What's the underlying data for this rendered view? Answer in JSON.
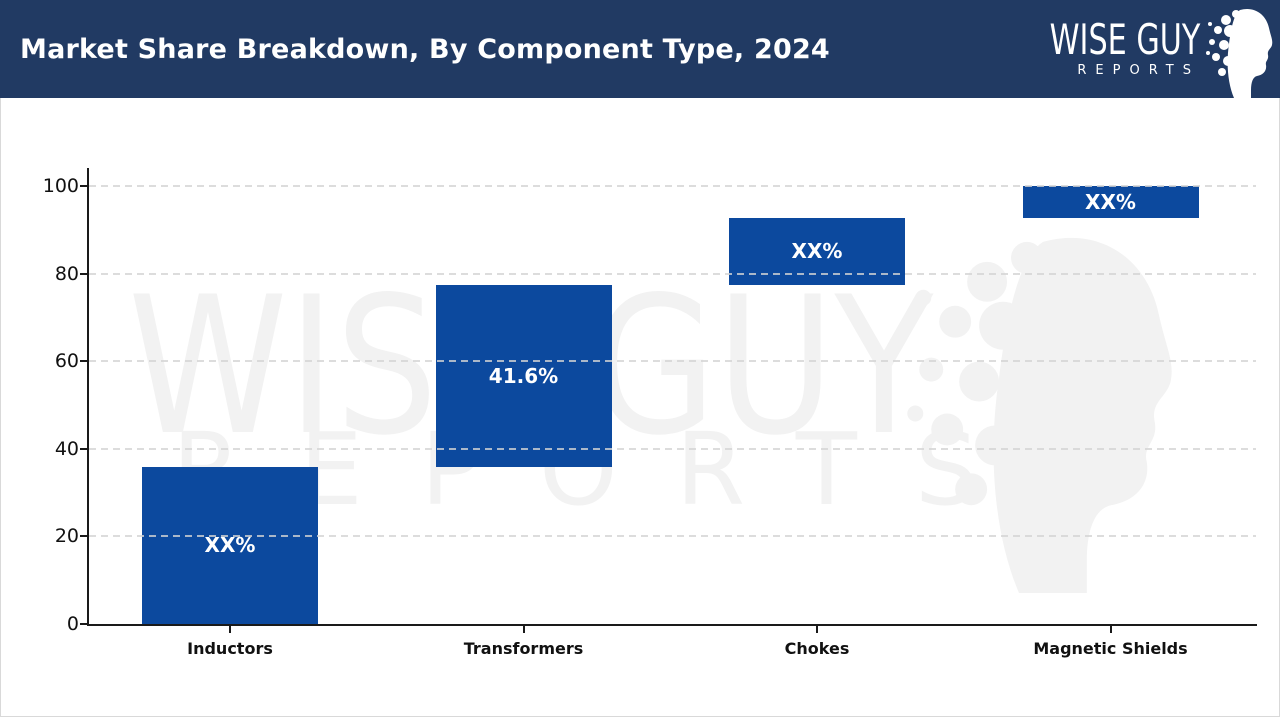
{
  "header": {
    "title": "Market Share Breakdown, By Component Type, 2024",
    "logo": {
      "line1": "WISE GUY",
      "line2": "REPORTS"
    }
  },
  "watermark": {
    "line1": "WISE GUY",
    "line2": "REPORTS"
  },
  "chart_data": {
    "type": "bar",
    "variant": "waterfall",
    "title": "Market Share Breakdown, By Component Type, 2024",
    "categories": [
      "Inductors",
      "Transformers",
      "Chokes",
      "Magnetic Shields"
    ],
    "segments": [
      {
        "category": "Inductors",
        "start": 0,
        "end": 35.8,
        "value_label": "XX%"
      },
      {
        "category": "Transformers",
        "start": 35.8,
        "end": 77.4,
        "value_label": "41.6%"
      },
      {
        "category": "Chokes",
        "start": 77.4,
        "end": 92.8,
        "value_label": "XX%"
      },
      {
        "category": "Magnetic Shields",
        "start": 92.8,
        "end": 100,
        "value_label": "XX%"
      }
    ],
    "xlabel": "",
    "ylabel": "",
    "ylim": [
      0,
      100
    ],
    "yticks": [
      0,
      20,
      40,
      60,
      80,
      100
    ],
    "grid": {
      "axis": "y",
      "style": "dashed",
      "drawn_over_bars": true
    },
    "legend_position": "none",
    "colors": {
      "bar": "#0c499e",
      "bar_label": "#ffffff",
      "axis": "#1a1a1a",
      "gridline": "#d4d4d4"
    }
  },
  "colors": {
    "header_bg": "#213a63",
    "logo_text": "#ffffff",
    "watermark": "#f2f2f2",
    "page_border": "#d9d9d9"
  }
}
